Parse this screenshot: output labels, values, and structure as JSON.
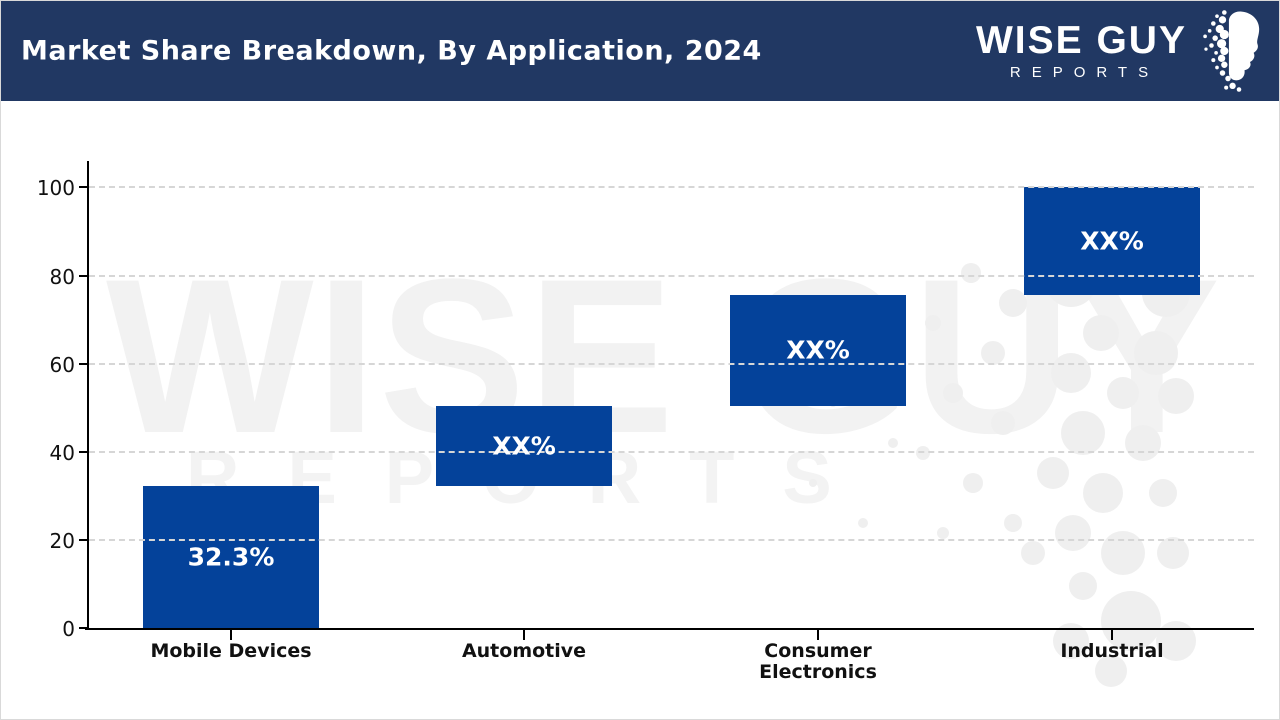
{
  "header": {
    "title": "Market Share Breakdown, By Application, 2024",
    "logo": {
      "line1": "WISE GUY",
      "line2": "REPORTS"
    }
  },
  "watermark": {
    "line1": "WISE GUY",
    "line2": "REPORTS"
  },
  "colors": {
    "header_bg": "#213863",
    "bar": "#04429a",
    "grid": "#d6d6d6",
    "axis": "#000000",
    "bar_label": "#ffffff",
    "title": "#ffffff",
    "watermark": "#f2f2f2"
  },
  "chart_data": {
    "type": "bar",
    "subtype": "waterfall",
    "title": "Market Share Breakdown, By Application, 2024",
    "xlabel": "",
    "ylabel": "",
    "ylim": [
      0,
      106
    ],
    "yticks": [
      0,
      20,
      40,
      60,
      80,
      100
    ],
    "grid": "horizontal-dashed",
    "legend": null,
    "categories": [
      "Mobile Devices",
      "Automotive",
      "Consumer Electronics",
      "Industrial"
    ],
    "category_label_lines": [
      [
        "Mobile Devices"
      ],
      [
        "Automotive"
      ],
      [
        "Consumer",
        "Electronics"
      ],
      [
        "Industrial"
      ]
    ],
    "segments": [
      {
        "category": "Mobile Devices",
        "start": 0,
        "end": 32.3,
        "label": "32.3%"
      },
      {
        "category": "Automotive",
        "start": 32.3,
        "end": 50.4,
        "label": "XX%"
      },
      {
        "category": "Consumer Electronics",
        "start": 50.4,
        "end": 75.6,
        "label": "XX%"
      },
      {
        "category": "Industrial",
        "start": 75.6,
        "end": 100,
        "label": "XX%"
      }
    ]
  }
}
